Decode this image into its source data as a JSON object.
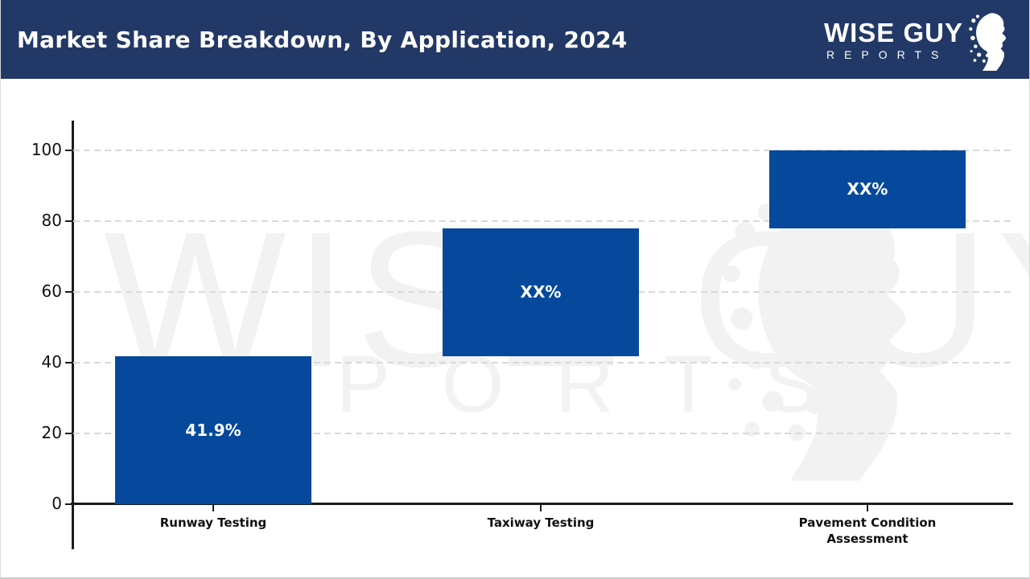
{
  "header": {
    "title": "Market Share Breakdown, By Application, 2024",
    "logo_line1": "WISE GUY",
    "logo_line2": "REPORTS",
    "bg_color": "#223866",
    "text_color": "#ffffff"
  },
  "watermark": {
    "line1": "WISE GUY",
    "line2": "REPORTS",
    "color": "#f2f2f2"
  },
  "chart_data": {
    "type": "bar",
    "subtype": "stacked-waterfall (floating segment bars, cumulative to 100%)",
    "title": "Market Share Breakdown, By Application, 2024",
    "categories": [
      "Runway Testing",
      "Taxiway Testing",
      "Pavement Condition Assessment"
    ],
    "segments": [
      {
        "category": "Runway Testing",
        "start": 0,
        "end": 41.9,
        "label": "41.9%"
      },
      {
        "category": "Taxiway Testing",
        "start": 41.9,
        "end": 78,
        "label": "XX%"
      },
      {
        "category": "Pavement Condition Assessment",
        "start": 78,
        "end": 100,
        "label": "XX%"
      }
    ],
    "xlabel": "",
    "ylabel": "",
    "ylim": [
      0,
      106
    ],
    "yticks": [
      0,
      20,
      40,
      60,
      80,
      100
    ],
    "grid": "horizontal dashed",
    "legend": "none",
    "bar_color": "#05489c",
    "bar_label_color": "#ffffff",
    "axis_color": "#1a1a1a",
    "grid_color": "#d9d9d9",
    "tick_label_color": "#111111"
  }
}
